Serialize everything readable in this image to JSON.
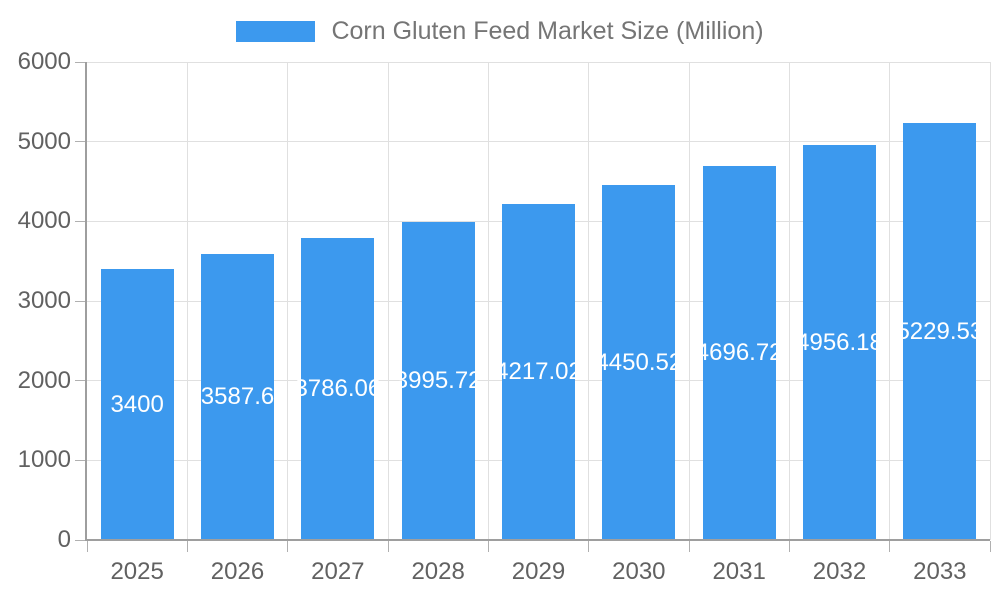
{
  "chart_data": {
    "type": "bar",
    "title": "Corn Gluten Feed Market Size (Million)",
    "categories": [
      "2025",
      "2026",
      "2027",
      "2028",
      "2029",
      "2030",
      "2031",
      "2032",
      "2033"
    ],
    "series": [
      {
        "name": "Corn Gluten Feed Market Size (Million)",
        "values": [
          3400,
          3587.6,
          3786.06,
          3995.72,
          4217.02,
          4450.52,
          4696.72,
          4956.18,
          5229.53
        ],
        "labels": [
          "3400",
          "3587.6",
          "3786.06",
          "3995.72",
          "4217.02",
          "4450.52",
          "4696.72",
          "4956.18",
          "5229.53"
        ]
      }
    ],
    "xlabel": "",
    "ylabel": "",
    "ylim": [
      0,
      6000
    ],
    "y_ticks": [
      0,
      1000,
      2000,
      3000,
      4000,
      5000,
      6000
    ],
    "y_tick_labels": [
      "0",
      "1000",
      "2000",
      "3000",
      "4000",
      "5000",
      "6000"
    ],
    "grid": true,
    "legend_position": "top-center",
    "colors": {
      "bar": "#3C99EE",
      "bar_label": "#FFFFFF",
      "axis_line": "#9E9E9E",
      "tick": "#B0B0B0",
      "grid_line": "#E0E0E0",
      "axis_text": "#616161",
      "title_text": "#757575",
      "background": "#FFFFFF"
    }
  }
}
